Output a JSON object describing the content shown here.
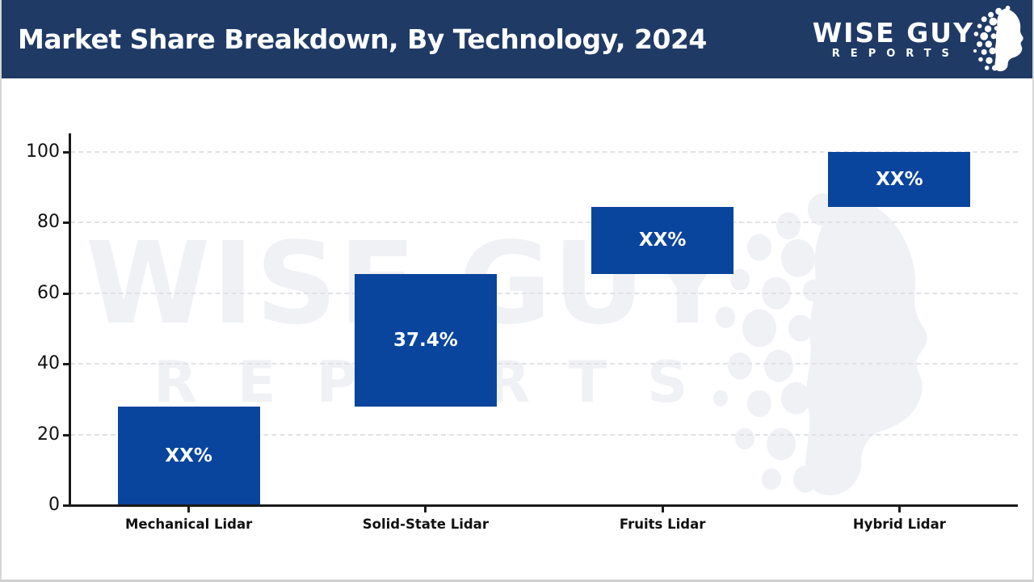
{
  "header": {
    "title": "Market Share Breakdown, By Technology, 2024",
    "logo": {
      "wordmark": "WISE GUY",
      "subtext": "REPORTS"
    }
  },
  "watermark": {
    "wordmark": "WISE GUY",
    "subtext": "REPORTS"
  },
  "colors": {
    "header_bg": "#203a66",
    "bar": "#09459c",
    "bar_label": "#ffffff",
    "grid": "#e2e2e6",
    "axis": "#1a1a1a",
    "watermark": "#f0f1f5"
  },
  "chart_data": {
    "type": "bar",
    "subtype": "floating-waterfall",
    "title": "Market Share Breakdown, By Technology, 2024",
    "categories": [
      "Mechanical Lidar",
      "Solid-State Lidar",
      "Fruits Lidar",
      "Hybrid Lidar"
    ],
    "segments": [
      {
        "category": "Mechanical Lidar",
        "from": 0,
        "to": 28,
        "value": 28,
        "label": "XX%"
      },
      {
        "category": "Solid-State Lidar",
        "from": 28,
        "to": 65.4,
        "value": 37.4,
        "label": "37.4%"
      },
      {
        "category": "Fruits Lidar",
        "from": 65.4,
        "to": 84.4,
        "value": 19,
        "label": "XX%"
      },
      {
        "category": "Hybrid Lidar",
        "from": 84.4,
        "to": 100,
        "value": 15.6,
        "label": "XX%"
      }
    ],
    "ylim": [
      0,
      105
    ],
    "yticks": [
      0,
      20,
      40,
      60,
      80,
      100
    ],
    "grid": "horizontal-dashed",
    "legend": "none"
  }
}
